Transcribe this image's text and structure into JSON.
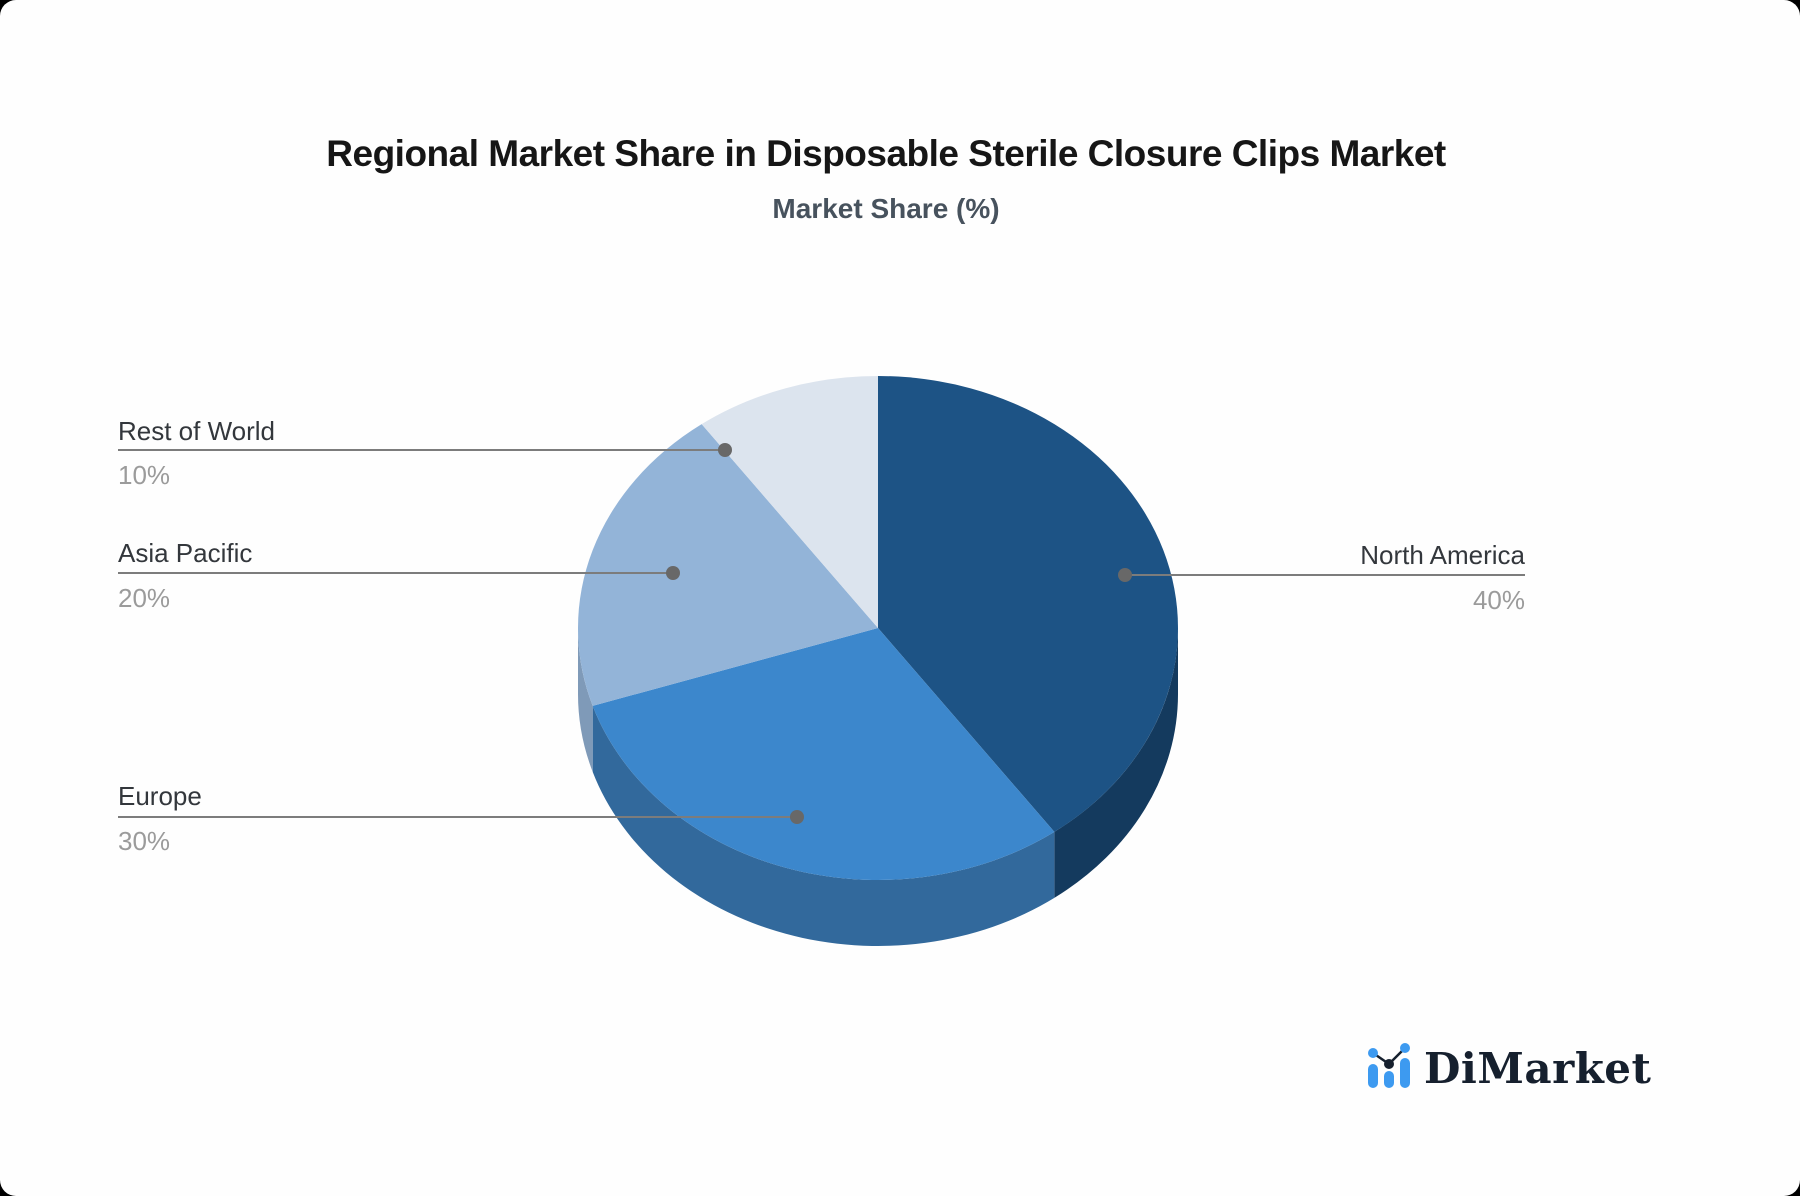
{
  "chart": {
    "title": "Regional Market Share in Disposable Sterile Closure Clips Market",
    "subtitle": "Market Share (%)"
  },
  "chart_data": {
    "type": "pie",
    "style": "3d",
    "title": "Regional Market Share in Disposable Sterile Closure Clips Market",
    "subtitle": "Market Share (%)",
    "unit": "%",
    "direction": "clockwise",
    "start_angle_deg": 0,
    "legend_position": "none",
    "label_style": "leader-lines",
    "segments": [
      {
        "label": "North America",
        "value": 40,
        "display": "40%",
        "color": "#1d5385",
        "side_color": "#143a5e",
        "label_side": "right"
      },
      {
        "label": "Europe",
        "value": 30,
        "display": "30%",
        "color": "#3c87cc",
        "side_color": "#32699c",
        "label_side": "left"
      },
      {
        "label": "Asia Pacific",
        "value": 20,
        "display": "20%",
        "color": "#93b4d8",
        "side_color": "#7f9ab8",
        "label_side": "left"
      },
      {
        "label": "Rest of World",
        "value": 10,
        "display": "10%",
        "color": "#dce4ee",
        "side_color": "#c3cedf",
        "label_side": "left"
      }
    ],
    "leader_line_color": "#7c7c7c",
    "leader_dot_color": "#686868"
  },
  "branding": {
    "logo_text": "DiMarket",
    "logo_text_color": "#16202e",
    "logo_accent_color": "#3d9af0"
  }
}
